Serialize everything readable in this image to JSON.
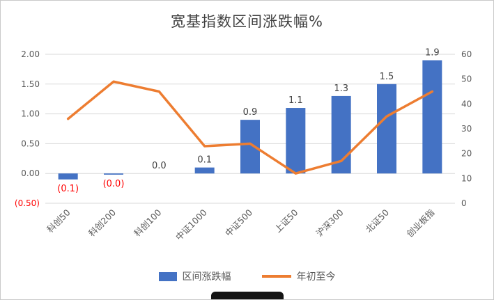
{
  "page": {
    "background": "#ffffff",
    "border_color": "#c9c9c9"
  },
  "chart_data": {
    "type": "bar",
    "combo": "bar+line",
    "title": "宽基指数区间涨跌幅%",
    "categories": [
      "科创50",
      "科创200",
      "科创100",
      "中证1000",
      "中证500",
      "上证50",
      "沪深300",
      "北证50",
      "创业板指"
    ],
    "series": [
      {
        "name": "区间涨跌幅",
        "chart_type": "bar",
        "axis": "left",
        "color": "#4472C4",
        "values": [
          -0.1,
          -0.02,
          0.0,
          0.1,
          0.9,
          1.1,
          1.3,
          1.5,
          1.9
        ],
        "labels": [
          "(0.1)",
          "(0.0)",
          "0.0",
          "0.1",
          "0.9",
          "1.1",
          "1.3",
          "1.5",
          "1.9"
        ]
      },
      {
        "name": "年初至今",
        "chart_type": "line",
        "axis": "right",
        "color": "#ED7D31",
        "values": [
          34,
          49,
          45,
          23,
          24,
          12,
          17,
          35,
          45
        ]
      }
    ],
    "left_axis": {
      "min": -0.5,
      "max": 2.0,
      "tick_labels": [
        "2.00",
        "1.50",
        "1.00",
        "0.50",
        "0.00",
        "(0.50)"
      ],
      "tick_values": [
        2.0,
        1.5,
        1.0,
        0.5,
        0.0,
        -0.5
      ]
    },
    "right_axis": {
      "min": 0,
      "max": 60,
      "tick_labels": [
        "60",
        "50",
        "40",
        "30",
        "20",
        "10",
        "0"
      ],
      "tick_values": [
        60,
        50,
        40,
        30,
        20,
        10,
        0
      ]
    },
    "grid": true,
    "legend_position": "bottom",
    "colors": {
      "grid": "#d9d9d9",
      "tick_text": "#595959",
      "data_label": "#404040",
      "negative_text": "#ff0000",
      "title_text": "#404040"
    }
  }
}
